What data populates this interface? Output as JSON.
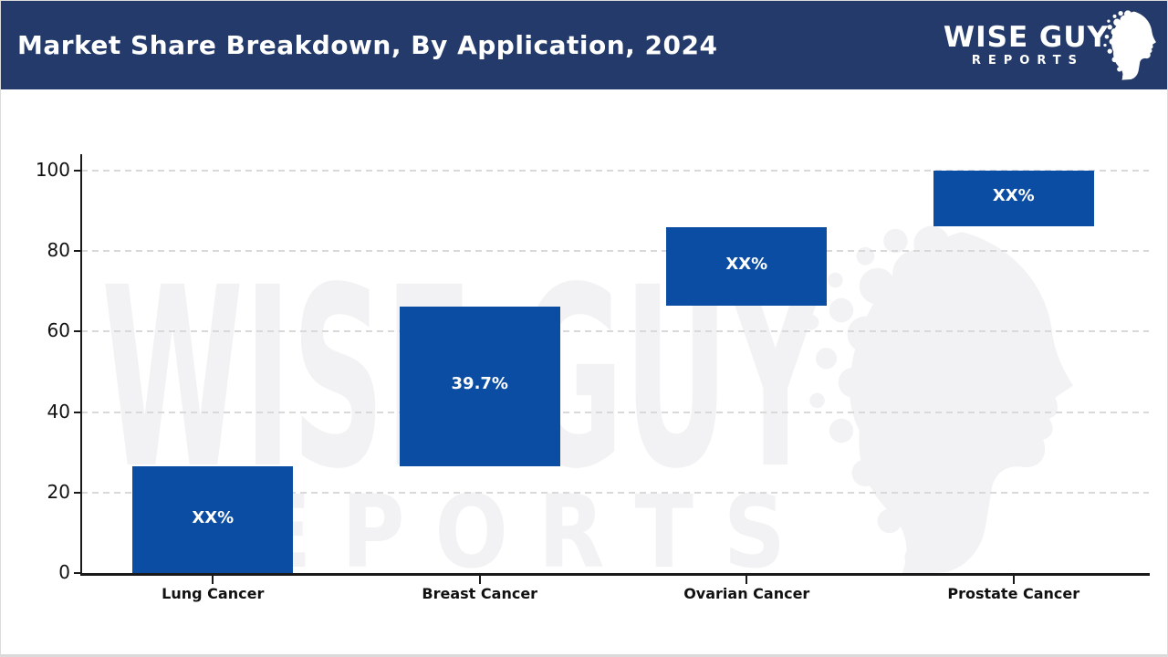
{
  "header": {
    "title": "Market Share Breakdown, By Application, 2024",
    "bg_color": "#233a6a",
    "logo": {
      "line1": "WISE GUY",
      "line2": "REPORTS"
    }
  },
  "watermark": {
    "line1": "WISE GUY",
    "line2": "R E P O R T S"
  },
  "colors": {
    "bar": "#0b4da2",
    "header_bg": "#233a6a",
    "gridline": "#d9d9d9",
    "axis": "#1a1a1a",
    "watermark": "#f2f2f4",
    "value_label": "#ffffff"
  },
  "chart_data": {
    "type": "bar",
    "subtype": "waterfall-floating-bars",
    "title": "Market Share Breakdown, By Application, 2024",
    "xlabel": "",
    "ylabel": "",
    "ylim": [
      0,
      100
    ],
    "yticks": [
      0,
      20,
      40,
      60,
      80,
      100
    ],
    "grid": "horizontal-dashed",
    "legend": "none",
    "categories": [
      "Lung Cancer",
      "Breast Cancer",
      "Ovarian Cancer",
      "Prostate Cancer"
    ],
    "segments": [
      {
        "category": "Lung Cancer",
        "start": 0,
        "end": 26.5,
        "label": "XX%"
      },
      {
        "category": "Breast Cancer",
        "start": 26.6,
        "end": 66.3,
        "label": "39.7%"
      },
      {
        "category": "Ovarian Cancer",
        "start": 66.4,
        "end": 86.0,
        "label": "XX%"
      },
      {
        "category": "Prostate Cancer",
        "start": 86.2,
        "end": 100,
        "label": "XX%"
      }
    ]
  }
}
